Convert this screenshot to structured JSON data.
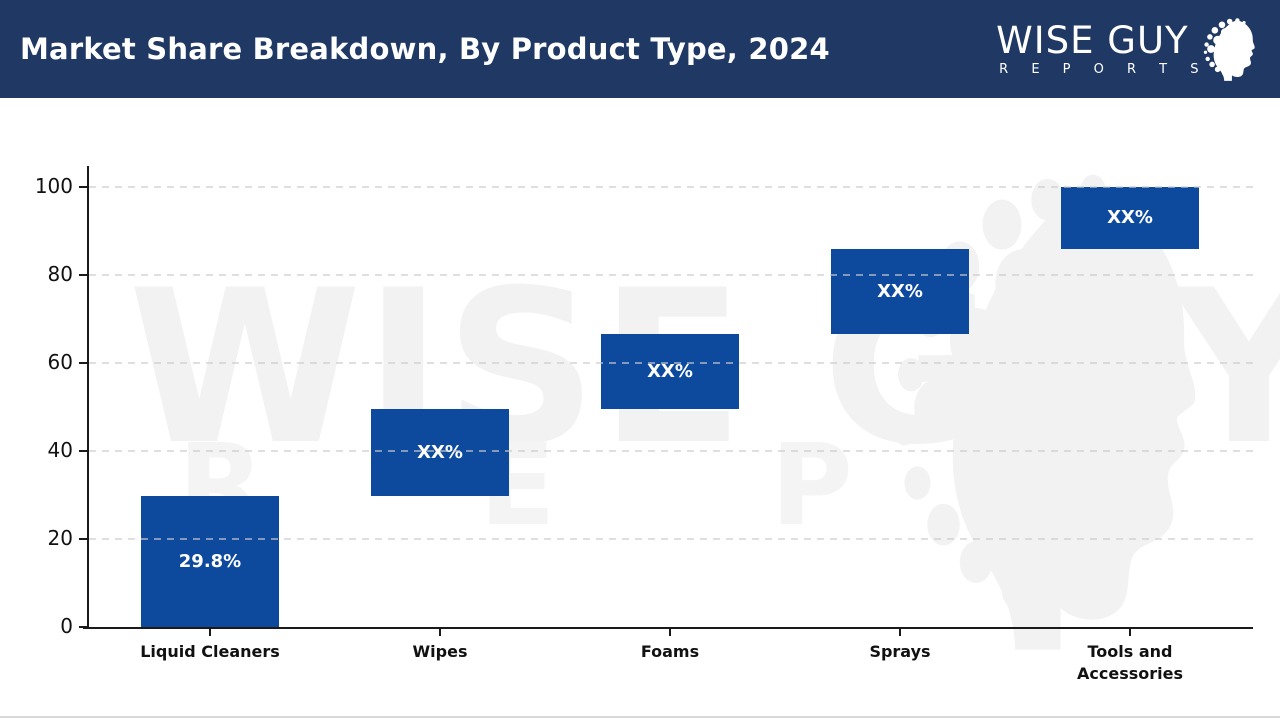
{
  "header": {
    "title": "Market Share Breakdown, By Product Type, 2024",
    "logo": {
      "line1": "WISE GUY",
      "line2": "R E P O R T S"
    }
  },
  "watermark": {
    "line1": "WISE GUY",
    "line2": "R E P O R T S"
  },
  "colors": {
    "header_bg": "#1f3864",
    "bar": "#0d4a9e",
    "bar_label": "#ffffff",
    "axis": "#1a1a1a",
    "grid": "#e0e0e0",
    "watermark": "#f2f2f2"
  },
  "chart_data": {
    "type": "bar",
    "subtype": "waterfall-breakdown",
    "title": "Market Share Breakdown, By Product Type, 2024",
    "categories": [
      "Liquid Cleaners",
      "Wipes",
      "Foams",
      "Sprays",
      "Tools and Accessories"
    ],
    "bars": [
      {
        "category": "Liquid Cleaners",
        "start": 0,
        "end": 29.8,
        "label": "29.8%"
      },
      {
        "category": "Wipes",
        "start": 29.8,
        "end": 49.6,
        "label": "XX%"
      },
      {
        "category": "Foams",
        "start": 49.6,
        "end": 66.5,
        "label": "XX%"
      },
      {
        "category": "Sprays",
        "start": 66.5,
        "end": 86.0,
        "label": "XX%"
      },
      {
        "category": "Tools and Accessories",
        "start": 86.0,
        "end": 100.0,
        "label": "XX%"
      }
    ],
    "xlabel": "",
    "ylabel": "",
    "ylim": [
      0,
      100
    ],
    "yticks": [
      0,
      20,
      40,
      60,
      80,
      100
    ],
    "grid": "horizontal dashed",
    "legend": "none"
  }
}
